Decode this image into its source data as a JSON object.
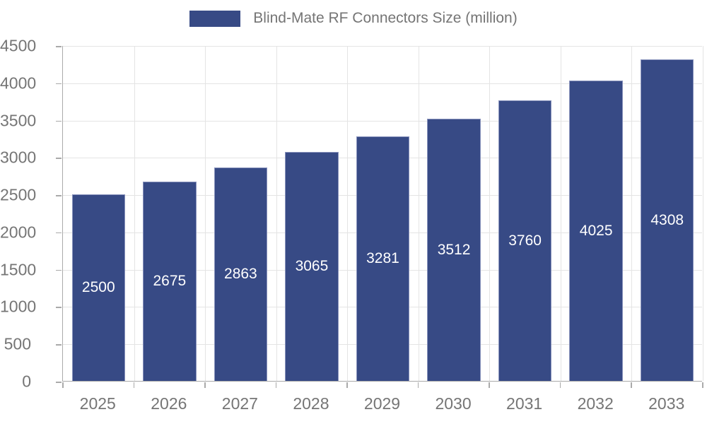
{
  "legend": {
    "label": "Blind-Mate RF Connectors Size (million)"
  },
  "chart_data": {
    "type": "bar",
    "title": "Blind-Mate RF Connectors Size (million)",
    "categories": [
      "2025",
      "2026",
      "2027",
      "2028",
      "2029",
      "2030",
      "2031",
      "2032",
      "2033"
    ],
    "values": [
      2500,
      2675,
      2863,
      3065,
      3281,
      3512,
      3760,
      4025,
      4308
    ],
    "value_labels": [
      "2500",
      "2675",
      "2863",
      "3065",
      "3281",
      "3512",
      "3760",
      "4025",
      "4308"
    ],
    "xlabel": "",
    "ylabel": "",
    "ylim": [
      0,
      4500
    ],
    "yticks": [
      0,
      500,
      1000,
      1500,
      2000,
      2500,
      3000,
      3500,
      4000,
      4500
    ],
    "grid": true,
    "legend_position": "top-center",
    "bar_label_position": "center",
    "colors": {
      "bar_fill": "#374a85",
      "bar_edge": "#8a94bd",
      "bar_label_text": "#ffffff",
      "axis_text": "#757575",
      "grid_line": "#e4e4e4",
      "axis_line": "#aaaaaa",
      "background": "#ffffff"
    }
  }
}
